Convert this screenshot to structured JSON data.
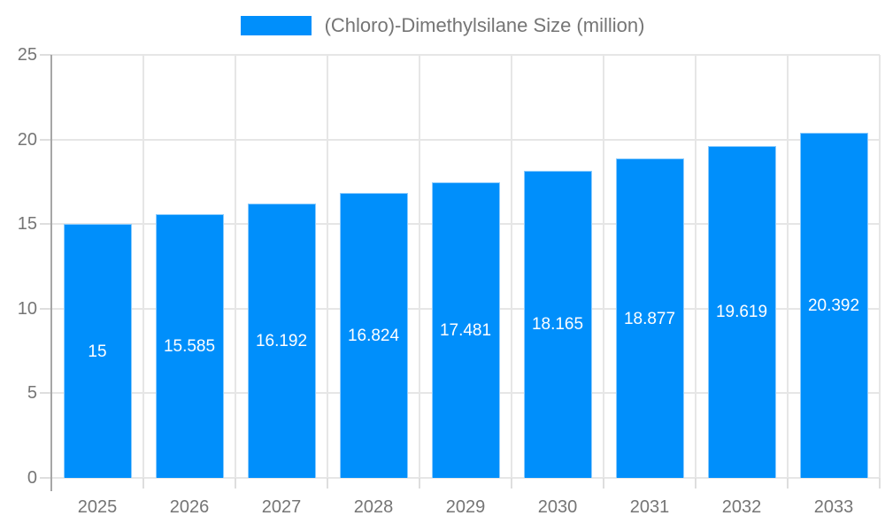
{
  "legend": {
    "label": "(Chloro)-Dimethylsilane Size (million)"
  },
  "chart_data": {
    "type": "bar",
    "title": "(Chloro)-Dimethylsilane Size (million)",
    "categories": [
      "2025",
      "2026",
      "2027",
      "2028",
      "2029",
      "2030",
      "2031",
      "2032",
      "2033"
    ],
    "series": [
      {
        "name": "(Chloro)-Dimethylsilane Size (million)",
        "values": [
          15,
          15.585,
          16.192,
          16.824,
          17.481,
          18.165,
          18.877,
          19.619,
          20.392
        ],
        "value_labels": [
          "15",
          "15.585",
          "16.192",
          "16.824",
          "17.481",
          "18.165",
          "18.877",
          "19.619",
          "20.392"
        ]
      }
    ],
    "xlabel": "",
    "ylabel": "",
    "ylim": [
      0,
      25
    ],
    "yticks": [
      0,
      5,
      10,
      15,
      20,
      25
    ],
    "grid": true,
    "legend_position": "top",
    "value_labels_position": "inside-center",
    "colors": {
      "bar_fill": "#008FFB",
      "grid_line": "#e6e6e6",
      "axis_line": "#a6a6a6",
      "tick_line": "#dedede",
      "axis_text": "#757575",
      "value_text": "#ffffff",
      "background": "#ffffff"
    }
  }
}
